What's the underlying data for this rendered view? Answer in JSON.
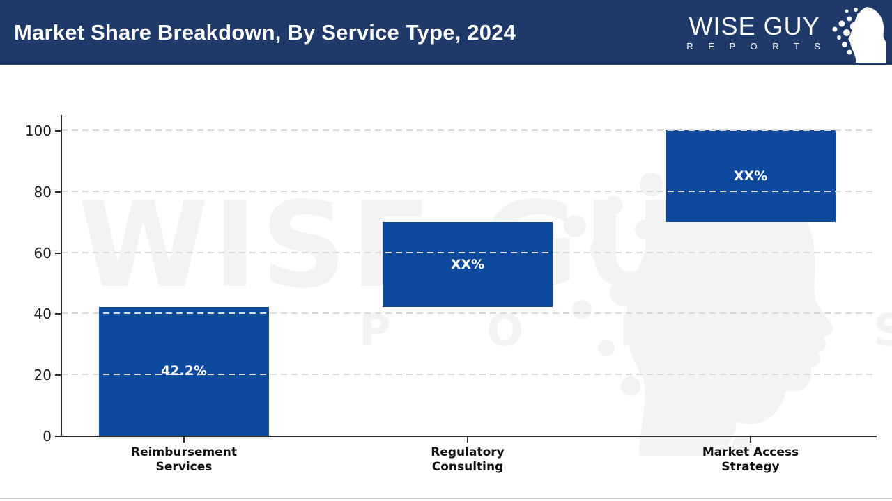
{
  "header": {
    "title": "Market Share Breakdown, By Service Type, 2024",
    "brand": {
      "line1": "WISE GUY",
      "line2": "R E P O R T S"
    }
  },
  "watermark": {
    "line1": "WISE GUY",
    "line2": "R E P O R T S"
  },
  "chart_data": {
    "type": "bar",
    "subtype": "waterfall-stacked-segments",
    "title": "Market Share Breakdown, By Service Type, 2024",
    "categories": [
      "Reimbursement\nServices",
      "Regulatory\nConsulting",
      "Market Access\nStrategy"
    ],
    "segments": [
      {
        "category": "Reimbursement Services",
        "start": 0,
        "end": 42.2,
        "label": "42.2%"
      },
      {
        "category": "Regulatory Consulting",
        "start": 42.2,
        "end": 70,
        "label": "XX%"
      },
      {
        "category": "Market Access Strategy",
        "start": 70,
        "end": 100,
        "label": "XX%"
      }
    ],
    "y_ticks": [
      0,
      20,
      40,
      60,
      80,
      100
    ],
    "ylim": [
      0,
      104
    ],
    "xlabel": "",
    "ylabel": "",
    "grid": "horizontal-dashed",
    "legend": "none",
    "colors": {
      "header_bg": "#1f3a68",
      "bar": "#0d4a9e",
      "grid": "#d9d9d9",
      "axis": "#262626",
      "watermark": "#f3f3f3",
      "bar_label_text": "#ffffff",
      "title_text": "#ffffff"
    }
  }
}
